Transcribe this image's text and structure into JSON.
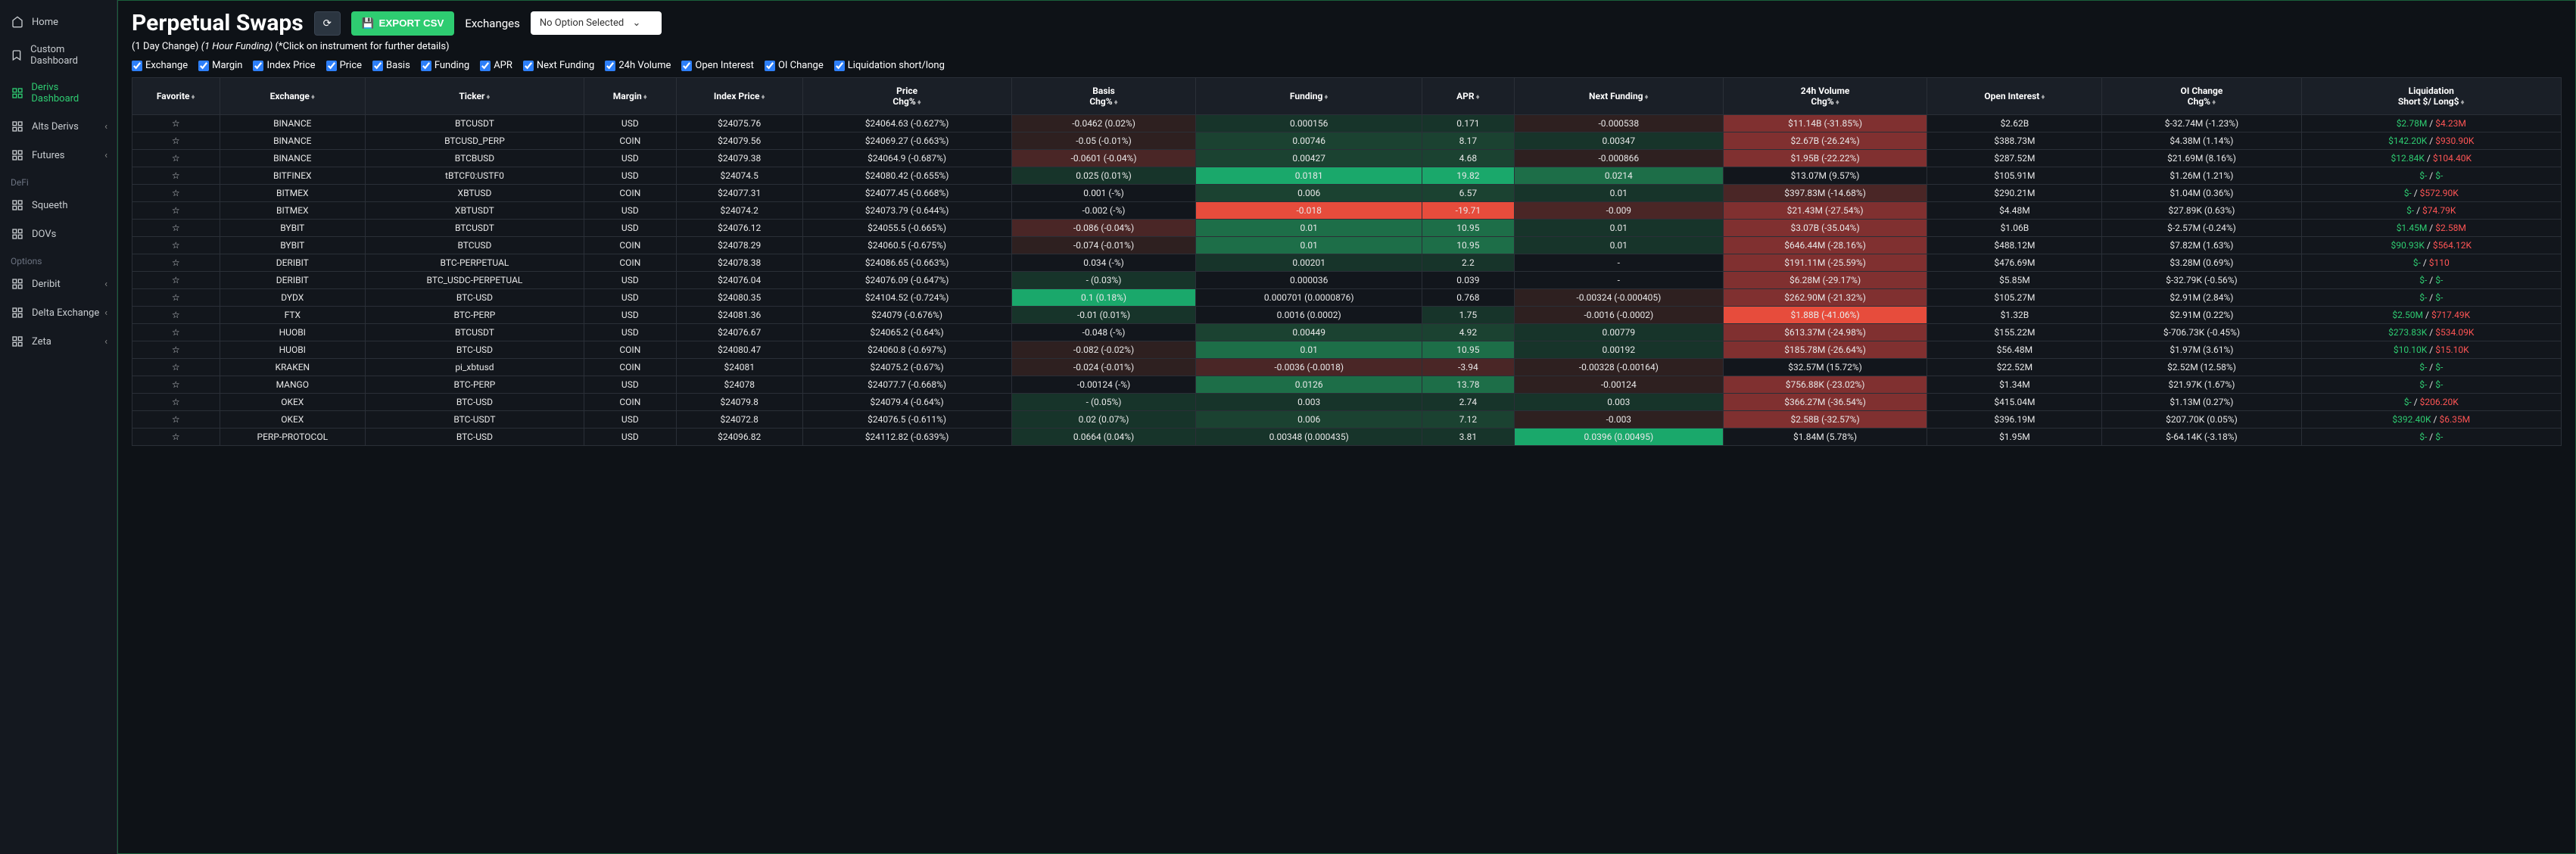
{
  "sidebar": {
    "items": [
      {
        "label": "Home",
        "icon": "home",
        "active": false,
        "hasChevron": false
      },
      {
        "label": "Custom Dashboard",
        "icon": "bookmark",
        "active": false,
        "hasChevron": false
      },
      {
        "label": "Derivs Dashboard",
        "icon": "grid",
        "active": true,
        "hasChevron": false
      },
      {
        "label": "Alts Derivs",
        "icon": "grid",
        "active": false,
        "hasChevron": true
      },
      {
        "label": "Futures",
        "icon": "grid",
        "active": false,
        "hasChevron": true
      }
    ],
    "sections": [
      {
        "label": "DeFi",
        "items": [
          {
            "label": "Squeeth",
            "icon": "grid",
            "active": false,
            "hasChevron": false
          },
          {
            "label": "DOVs",
            "icon": "grid",
            "active": false,
            "hasChevron": false
          }
        ]
      },
      {
        "label": "Options",
        "items": [
          {
            "label": "Deribit",
            "icon": "grid",
            "active": false,
            "hasChevron": true
          },
          {
            "label": "Delta Exchange",
            "icon": "grid",
            "active": false,
            "hasChevron": true
          },
          {
            "label": "Zeta",
            "icon": "grid",
            "active": false,
            "hasChevron": true
          }
        ]
      }
    ]
  },
  "header": {
    "title": "Perpetual Swaps",
    "export_label": "EXPORT CSV",
    "exchanges_label": "Exchanges",
    "exchange_selected": "No Option Selected",
    "subtitle_prefix": "(1 Day Change) ",
    "subtitle_italic": "(1 Hour Funding)",
    "subtitle_suffix": " (*Click on instrument for further details)"
  },
  "filters": [
    {
      "label": "Exchange",
      "checked": true
    },
    {
      "label": "Margin",
      "checked": true
    },
    {
      "label": "Index Price",
      "checked": true
    },
    {
      "label": "Price",
      "checked": true
    },
    {
      "label": "Basis",
      "checked": true
    },
    {
      "label": "Funding",
      "checked": true
    },
    {
      "label": "APR",
      "checked": true
    },
    {
      "label": "Next Funding",
      "checked": true
    },
    {
      "label": "24h Volume",
      "checked": true
    },
    {
      "label": "Open Interest",
      "checked": true
    },
    {
      "label": "OI Change",
      "checked": true
    },
    {
      "label": "Liquidation short/long",
      "checked": true
    }
  ],
  "columns": [
    {
      "label": "Favorite",
      "width": "3.6%"
    },
    {
      "label": "Exchange",
      "width": "6%"
    },
    {
      "label": "Ticker",
      "width": "9%"
    },
    {
      "label": "Margin",
      "width": "3.8%"
    },
    {
      "label": "Index Price",
      "width": "5.2%"
    },
    {
      "label": "Price Chg%",
      "width": "8.6%"
    },
    {
      "label": "Basis Chg%",
      "width": "7.6%"
    },
    {
      "label": "Funding",
      "width": "9.3%"
    },
    {
      "label": "APR",
      "width": "3.8%"
    },
    {
      "label": "Next Funding",
      "width": "8.6%"
    },
    {
      "label": "24h Volume Chg%",
      "width": "8.4%"
    },
    {
      "label": "Open Interest",
      "width": "7.2%"
    },
    {
      "label": "OI Change Chg%",
      "width": "8.2%"
    },
    {
      "label": "Liquidation Short $/ Long$",
      "width": "10.7%"
    }
  ],
  "colors": {
    "green_bright": "#1aa86b",
    "green_mid": "#1d6e48",
    "green_dim": "#1b4231",
    "green_faint": "#17342a",
    "red_bright": "#e74c3c",
    "red_mid": "#803030",
    "red_dim": "#4a2626",
    "red_faint": "#2e2020",
    "neutral": "transparent"
  },
  "rows": [
    {
      "exchange": "BINANCE",
      "ticker": "BTCUSDT",
      "margin": "USD",
      "index": "$24075.76",
      "price": "$24064.63 (-0.627%)",
      "basis": "-0.0462 (0.02%)",
      "basis_bg": "red_faint",
      "funding": "0.000156",
      "funding_bg": "green_faint",
      "apr": "0.171",
      "apr_bg": "green_faint",
      "next": "-0.000538",
      "next_bg": "red_faint",
      "vol": "$11.14B (-31.85%)",
      "vol_bg": "red_mid",
      "oi": "$2.62B",
      "oichg": "$-32.74M (-1.23%)",
      "liq_short": "$2.78M",
      "liq_long": "$4.23M"
    },
    {
      "exchange": "BINANCE",
      "ticker": "BTCUSD_PERP",
      "margin": "COIN",
      "index": "$24079.56",
      "price": "$24069.27 (-0.663%)",
      "basis": "-0.05 (-0.01%)",
      "basis_bg": "red_faint",
      "funding": "0.00746",
      "funding_bg": "green_dim",
      "apr": "8.17",
      "apr_bg": "green_dim",
      "next": "0.00347",
      "next_bg": "green_faint",
      "vol": "$2.67B (-26.24%)",
      "vol_bg": "red_mid",
      "oi": "$388.73M",
      "oichg": "$4.38M (1.14%)",
      "liq_short": "$142.20K",
      "liq_long": "$930.90K"
    },
    {
      "exchange": "BINANCE",
      "ticker": "BTCBUSD",
      "margin": "USD",
      "index": "$24079.38",
      "price": "$24064.9 (-0.687%)",
      "basis": "-0.0601 (-0.04%)",
      "basis_bg": "red_dim",
      "funding": "0.00427",
      "funding_bg": "green_dim",
      "apr": "4.68",
      "apr_bg": "green_dim",
      "next": "-0.000866",
      "next_bg": "red_faint",
      "vol": "$1.95B (-22.22%)",
      "vol_bg": "red_mid",
      "oi": "$287.52M",
      "oichg": "$21.69M (8.16%)",
      "liq_short": "$12.84K",
      "liq_long": "$104.40K"
    },
    {
      "exchange": "BITFINEX",
      "ticker": "tBTCF0:USTF0",
      "margin": "USD",
      "index": "$24074.5",
      "price": "$24080.42 (-0.655%)",
      "basis": "0.025 (0.01%)",
      "basis_bg": "green_faint",
      "funding": "0.0181",
      "funding_bg": "green_bright",
      "apr": "19.82",
      "apr_bg": "green_bright",
      "next": "0.0214",
      "next_bg": "green_mid",
      "vol": "$13.07M (9.57%)",
      "vol_bg": "neutral",
      "oi": "$105.91M",
      "oichg": "$1.26M (1.21%)",
      "liq_short": "$-",
      "liq_long": "$-"
    },
    {
      "exchange": "BITMEX",
      "ticker": "XBTUSD",
      "margin": "COIN",
      "index": "$24077.31",
      "price": "$24077.45 (-0.668%)",
      "basis": "0.001 (-%)",
      "basis_bg": "neutral",
      "funding": "0.006",
      "funding_bg": "green_dim",
      "apr": "6.57",
      "apr_bg": "green_dim",
      "next": "0.01",
      "next_bg": "green_faint",
      "vol": "$397.83M (-14.68%)",
      "vol_bg": "red_dim",
      "oi": "$290.21M",
      "oichg": "$1.04M (0.36%)",
      "liq_short": "$-",
      "liq_long": "$572.90K"
    },
    {
      "exchange": "BITMEX",
      "ticker": "XBTUSDT",
      "margin": "USD",
      "index": "$24074.2",
      "price": "$24073.79 (-0.644%)",
      "basis": "-0.002 (-%)",
      "basis_bg": "neutral",
      "funding": "-0.018",
      "funding_bg": "red_bright",
      "apr": "-19.71",
      "apr_bg": "red_bright",
      "next": "-0.009",
      "next_bg": "red_dim",
      "vol": "$21.43M (-27.54%)",
      "vol_bg": "red_mid",
      "oi": "$4.48M",
      "oichg": "$27.89K (0.63%)",
      "liq_short": "$-",
      "liq_long": "$74.79K"
    },
    {
      "exchange": "BYBIT",
      "ticker": "BTCUSDT",
      "margin": "USD",
      "index": "$24076.12",
      "price": "$24055.5 (-0.665%)",
      "basis": "-0.086 (-0.04%)",
      "basis_bg": "red_dim",
      "funding": "0.01",
      "funding_bg": "green_mid",
      "apr": "10.95",
      "apr_bg": "green_mid",
      "next": "0.01",
      "next_bg": "green_faint",
      "vol": "$3.07B (-35.04%)",
      "vol_bg": "red_mid",
      "oi": "$1.06B",
      "oichg": "$-2.57M (-0.24%)",
      "liq_short": "$1.45M",
      "liq_long": "$2.58M"
    },
    {
      "exchange": "BYBIT",
      "ticker": "BTCUSD",
      "margin": "COIN",
      "index": "$24078.29",
      "price": "$24060.5 (-0.675%)",
      "basis": "-0.074 (-0.01%)",
      "basis_bg": "red_faint",
      "funding": "0.01",
      "funding_bg": "green_mid",
      "apr": "10.95",
      "apr_bg": "green_mid",
      "next": "0.01",
      "next_bg": "green_faint",
      "vol": "$646.44M (-28.16%)",
      "vol_bg": "red_mid",
      "oi": "$488.12M",
      "oichg": "$7.82M (1.63%)",
      "liq_short": "$90.93K",
      "liq_long": "$564.12K"
    },
    {
      "exchange": "DERIBIT",
      "ticker": "BTC-PERPETUAL",
      "margin": "COIN",
      "index": "$24078.38",
      "price": "$24086.65 (-0.663%)",
      "basis": "0.034 (-%)",
      "basis_bg": "neutral",
      "funding": "0.00201",
      "funding_bg": "green_faint",
      "apr": "2.2",
      "apr_bg": "green_faint",
      "next": "-",
      "next_bg": "neutral",
      "vol": "$191.11M (-25.59%)",
      "vol_bg": "red_mid",
      "oi": "$476.69M",
      "oichg": "$3.28M (0.69%)",
      "liq_short": "$-",
      "liq_long": "$110"
    },
    {
      "exchange": "DERIBIT",
      "ticker": "BTC_USDC-PERPETUAL",
      "margin": "USD",
      "index": "$24076.04",
      "price": "$24076.09 (-0.647%)",
      "basis": "- (0.03%)",
      "basis_bg": "green_faint",
      "funding": "0.000036",
      "funding_bg": "neutral",
      "apr": "0.039",
      "apr_bg": "neutral",
      "next": "-",
      "next_bg": "neutral",
      "vol": "$6.28M (-29.17%)",
      "vol_bg": "red_mid",
      "oi": "$5.85M",
      "oichg": "$-32.79K (-0.56%)",
      "liq_short": "$-",
      "liq_long": "$-"
    },
    {
      "exchange": "DYDX",
      "ticker": "BTC-USD",
      "margin": "USD",
      "index": "$24080.35",
      "price": "$24104.52 (-0.724%)",
      "basis": "0.1 (0.18%)",
      "basis_bg": "green_bright",
      "funding": "0.000701 (0.0000876)",
      "funding_bg": "neutral",
      "apr": "0.768",
      "apr_bg": "neutral",
      "next": "-0.00324 (-0.000405)",
      "next_bg": "red_faint",
      "vol": "$262.90M (-21.32%)",
      "vol_bg": "red_mid",
      "oi": "$105.27M",
      "oichg": "$2.91M (2.84%)",
      "liq_short": "$-",
      "liq_long": "$-"
    },
    {
      "exchange": "FTX",
      "ticker": "BTC-PERP",
      "margin": "USD",
      "index": "$24081.36",
      "price": "$24079 (-0.676%)",
      "basis": "-0.01 (0.01%)",
      "basis_bg": "green_faint",
      "funding": "0.0016 (0.0002)",
      "funding_bg": "neutral",
      "apr": "1.75",
      "apr_bg": "green_faint",
      "next": "-0.0016 (-0.0002)",
      "next_bg": "red_faint",
      "vol": "$1.88B (-41.06%)",
      "vol_bg": "red_bright",
      "oi": "$1.32B",
      "oichg": "$2.91M (0.22%)",
      "liq_short": "$2.50M",
      "liq_long": "$717.49K"
    },
    {
      "exchange": "HUOBI",
      "ticker": "BTCUSDT",
      "margin": "USD",
      "index": "$24076.67",
      "price": "$24065.2 (-0.64%)",
      "basis": "-0.048 (-%)",
      "basis_bg": "neutral",
      "funding": "0.00449",
      "funding_bg": "green_dim",
      "apr": "4.92",
      "apr_bg": "green_dim",
      "next": "0.00779",
      "next_bg": "green_faint",
      "vol": "$613.37M (-24.98%)",
      "vol_bg": "red_mid",
      "oi": "$155.22M",
      "oichg": "$-706.73K (-0.45%)",
      "liq_short": "$273.83K",
      "liq_long": "$534.09K"
    },
    {
      "exchange": "HUOBI",
      "ticker": "BTC-USD",
      "margin": "COIN",
      "index": "$24080.47",
      "price": "$24060.8 (-0.697%)",
      "basis": "-0.082 (-0.02%)",
      "basis_bg": "red_faint",
      "funding": "0.01",
      "funding_bg": "green_mid",
      "apr": "10.95",
      "apr_bg": "green_mid",
      "next": "0.00192",
      "next_bg": "green_faint",
      "vol": "$185.78M (-26.64%)",
      "vol_bg": "red_mid",
      "oi": "$56.48M",
      "oichg": "$1.97M (3.61%)",
      "liq_short": "$10.10K",
      "liq_long": "$15.10K"
    },
    {
      "exchange": "KRAKEN",
      "ticker": "pi_xbtusd",
      "margin": "COIN",
      "index": "$24081",
      "price": "$24075.2 (-0.67%)",
      "basis": "-0.024 (-0.01%)",
      "basis_bg": "red_faint",
      "funding": "-0.0036 (-0.0018)",
      "funding_bg": "red_dim",
      "apr": "-3.94",
      "apr_bg": "red_dim",
      "next": "-0.00328 (-0.00164)",
      "next_bg": "red_faint",
      "vol": "$32.57M (15.72%)",
      "vol_bg": "neutral",
      "oi": "$22.52M",
      "oichg": "$2.52M (12.58%)",
      "liq_short": "$-",
      "liq_long": "$-"
    },
    {
      "exchange": "MANGO",
      "ticker": "BTC-PERP",
      "margin": "USD",
      "index": "$24078",
      "price": "$24077.7 (-0.668%)",
      "basis": "-0.00124 (-%)",
      "basis_bg": "neutral",
      "funding": "0.0126",
      "funding_bg": "green_mid",
      "apr": "13.78",
      "apr_bg": "green_mid",
      "next": "-0.00124",
      "next_bg": "red_faint",
      "vol": "$756.88K (-23.02%)",
      "vol_bg": "red_mid",
      "oi": "$1.34M",
      "oichg": "$21.97K (1.67%)",
      "liq_short": "$-",
      "liq_long": "$-"
    },
    {
      "exchange": "OKEX",
      "ticker": "BTC-USD",
      "margin": "COIN",
      "index": "$24079.8",
      "price": "$24079.4 (-0.64%)",
      "basis": "- (0.05%)",
      "basis_bg": "green_faint",
      "funding": "0.003",
      "funding_bg": "green_faint",
      "apr": "2.74",
      "apr_bg": "green_faint",
      "next": "0.003",
      "next_bg": "green_faint",
      "vol": "$366.27M (-36.54%)",
      "vol_bg": "red_mid",
      "oi": "$415.04M",
      "oichg": "$1.13M (0.27%)",
      "liq_short": "$-",
      "liq_long": "$206.20K"
    },
    {
      "exchange": "OKEX",
      "ticker": "BTC-USDT",
      "margin": "USD",
      "index": "$24072.8",
      "price": "$24076.5 (-0.611%)",
      "basis": "0.02 (0.07%)",
      "basis_bg": "green_faint",
      "funding": "0.006",
      "funding_bg": "green_dim",
      "apr": "7.12",
      "apr_bg": "green_dim",
      "next": "-0.003",
      "next_bg": "red_faint",
      "vol": "$2.58B (-32.57%)",
      "vol_bg": "red_mid",
      "oi": "$396.19M",
      "oichg": "$207.70K (0.05%)",
      "liq_short": "$392.40K",
      "liq_long": "$6.35M"
    },
    {
      "exchange": "PERP-PROTOCOL",
      "ticker": "BTC-USD",
      "margin": "USD",
      "index": "$24096.82",
      "price": "$24112.82 (-0.639%)",
      "basis": "0.0664 (0.04%)",
      "basis_bg": "green_faint",
      "funding": "0.00348 (0.000435)",
      "funding_bg": "green_faint",
      "apr": "3.81",
      "apr_bg": "green_faint",
      "next": "0.0396 (0.00495)",
      "next_bg": "green_bright",
      "vol": "$1.84M (5.78%)",
      "vol_bg": "neutral",
      "oi": "$1.95M",
      "oichg": "$-64.14K (-3.18%)",
      "liq_short": "$-",
      "liq_long": "$-"
    }
  ]
}
